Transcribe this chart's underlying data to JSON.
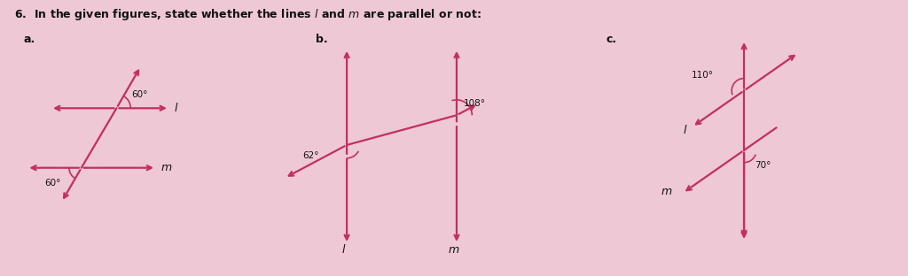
{
  "title": "6.  In the given figures, state whether the lines $l$ and $m$ are parallel or not:",
  "bg_color": "#efc8d5",
  "line_color": "#c03060",
  "text_color": "#111111",
  "fig_labels": [
    "a.",
    "b.",
    "c."
  ]
}
